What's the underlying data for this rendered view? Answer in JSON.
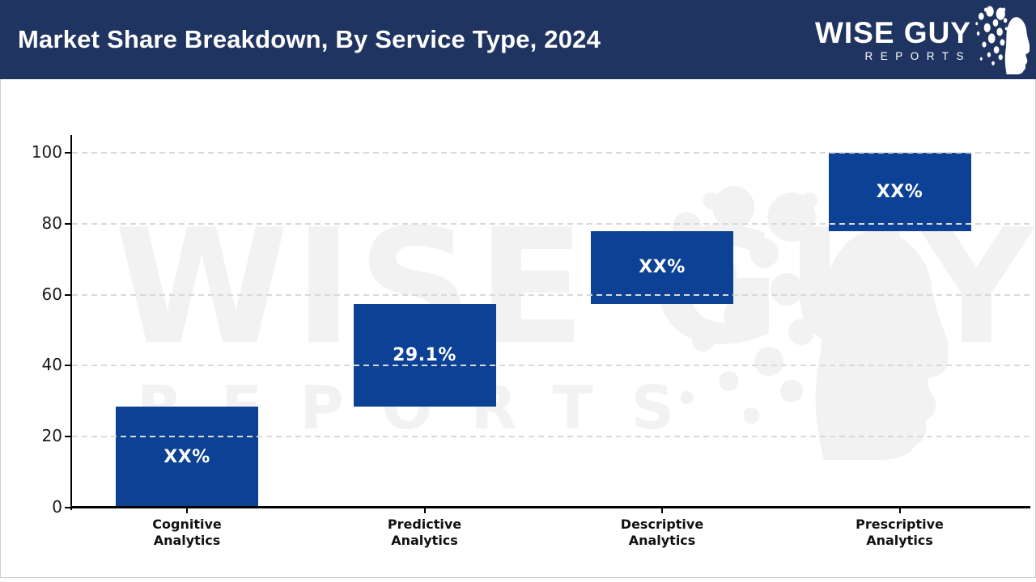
{
  "header": {
    "title": "Market Share Breakdown, By Service Type, 2024",
    "background": "#1f3461",
    "text_color": "#ffffff",
    "brand": {
      "name": "WISE GUY",
      "subtitle": "REPORTS"
    }
  },
  "watermark": {
    "line1": "WISE GUY",
    "line2": "REPORTS",
    "color": "#f2f2f2"
  },
  "frame": {
    "border_color": "#cccccc",
    "background": "#ffffff"
  },
  "chart_data": {
    "type": "bar",
    "subtype": "waterfall",
    "title": "Market Share Breakdown, By Service Type, 2024",
    "categories": [
      "Cognitive Analytics",
      "Predictive Analytics",
      "Descriptive Analytics",
      "Prescriptive Analytics"
    ],
    "segments": [
      {
        "category": "Cognitive Analytics",
        "start": 0,
        "end": 28.4,
        "value": 28.4,
        "label": "XX%"
      },
      {
        "category": "Predictive Analytics",
        "start": 28.4,
        "end": 57.5,
        "value": 29.1,
        "label": "29.1%"
      },
      {
        "category": "Descriptive Analytics",
        "start": 57.5,
        "end": 77.9,
        "value": 20.4,
        "label": "XX%"
      },
      {
        "category": "Prescriptive Analytics",
        "start": 77.9,
        "end": 100,
        "value": 22.1,
        "label": "XX%"
      }
    ],
    "y_ticks": [
      0,
      20,
      40,
      60,
      80,
      100
    ],
    "ylim": [
      0,
      105
    ],
    "xlabel": "",
    "ylabel": "",
    "grid": "horizontal-dashed",
    "legend": "none",
    "bar_color": "#0c4195",
    "bar_label_color": "#ffffff",
    "grid_color": "#d9d9d9",
    "axis_color": "#000000",
    "tick_label_color": "#1a1a1a"
  }
}
